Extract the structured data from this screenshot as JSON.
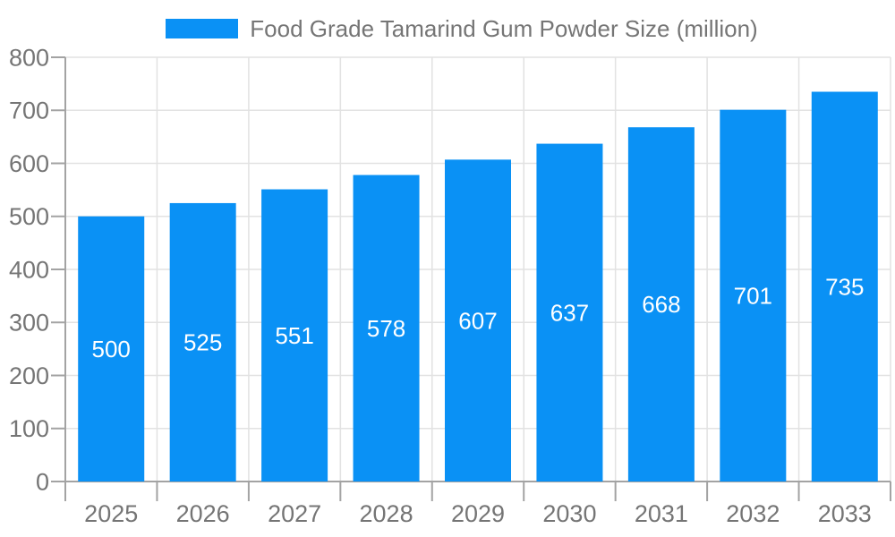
{
  "legend": {
    "label": "Food Grade Tamarind Gum Powder Size (million)"
  },
  "chart_data": {
    "type": "bar",
    "title": "Food Grade Tamarind Gum Powder Size (million)",
    "categories": [
      "2025",
      "2026",
      "2027",
      "2028",
      "2029",
      "2030",
      "2031",
      "2032",
      "2033"
    ],
    "series": [
      {
        "name": "Food Grade Tamarind Gum Powder Size (million)",
        "values": [
          500,
          525,
          551,
          578,
          607,
          637,
          668,
          701,
          735
        ]
      }
    ],
    "xlabel": "",
    "ylabel": "",
    "ylim": [
      0,
      800
    ],
    "ytick_step": 100,
    "yticks": [
      0,
      100,
      200,
      300,
      400,
      500,
      600,
      700,
      800
    ],
    "grid": true,
    "legend_position": "top",
    "value_labels": "inside-center",
    "colors": {
      "bar": "#0a91f5",
      "value_label": "#ffffff",
      "axis_text": "#757575",
      "axis_line": "#a3a3a3",
      "grid": "#e2e2e2"
    }
  }
}
